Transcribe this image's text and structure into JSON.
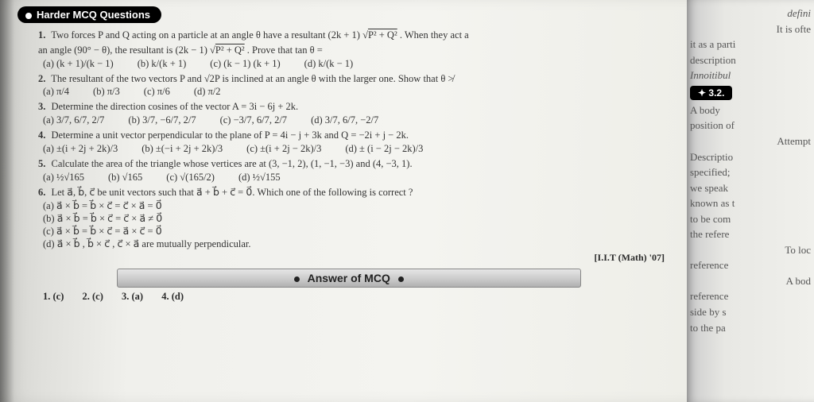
{
  "header": {
    "title": "Harder MCQ Questions"
  },
  "questions": [
    {
      "num": "1.",
      "text_a": "Two forces P and Q acting on a particle at an angle θ have a resultant (2k + 1)",
      "root_a": "P² + Q²",
      "text_b": " . When they act a",
      "text_c": "an angle (90° − θ), the resultant is (2k − 1)",
      "root_c": "P² + Q²",
      "text_d": " . Prove that tan θ =",
      "opts": [
        "(a) (k + 1)/(k − 1)",
        "(b) k/(k + 1)",
        "(c) (k − 1) (k + 1)",
        "(d) k/(k − 1)"
      ]
    },
    {
      "num": "2.",
      "text_a": "The resultant of the two vectors P and √2P is inclined at an angle θ with the larger one. Show that θ ≯",
      "opts": [
        "(a) π/4",
        "(b) π/3",
        "(c) π/6",
        "(d) π/2"
      ]
    },
    {
      "num": "3.",
      "text_a": "Determine the direction cosines of the vector A = 3i − 6j + 2k.",
      "opts": [
        "(a) 3/7, 6/7, 2/7",
        "(b) 3/7, −6/7, 2/7",
        "(c) −3/7, 6/7, 2/7",
        "(d) 3/7, 6/7, −2/7"
      ]
    },
    {
      "num": "4.",
      "text_a": "Determine a unit vector perpendicular to the plane of P = 4i − j + 3k and Q = −2i + j − 2k.",
      "opts": [
        "(a) ±(i + 2j + 2k)/3",
        "(b) ±(−i + 2j + 2k)/3",
        "(c) ±(i + 2j − 2k)/3",
        "(d) ± (i − 2j − 2k)/3"
      ]
    },
    {
      "num": "5.",
      "text_a": "Calculate the area of the triangle whose vertices are at (3, −1, 2), (1, −1, −3) and (4, −3, 1).",
      "opts": [
        "(a) ½√165",
        "(b) √165",
        "(c) √(165/2)",
        "(d) ½√155"
      ]
    },
    {
      "num": "6.",
      "text_a": "Let a⃗, b⃗, c⃗ be unit vectors such that a⃗ + b⃗ + c⃗ = 0⃗. Which one of the following is correct ?",
      "opts": [
        "(a) a⃗ × b⃗ = b⃗ × c⃗ = c⃗ × a⃗ = 0⃗",
        "(b) a⃗ × b⃗ = b⃗ × c⃗ = c⃗ × a⃗ ≠ 0⃗",
        "(c) a⃗ × b⃗ = b⃗ × c⃗ = a⃗ × c⃗ = 0⃗",
        "(d) a⃗ × b⃗ , b⃗ × c⃗ , c⃗ × a⃗ are mutually perpendicular."
      ]
    }
  ],
  "reference": "[I.I.T (Math) '07]",
  "answerbar": "Answer of MCQ",
  "answers": [
    "1. (c)",
    "2. (c)",
    "3. (a)",
    "4. (d)"
  ],
  "right": {
    "l1": "defini",
    "l2": "It is ofte",
    "l3": "it as a parti",
    "l4": "description",
    "l5": "Innoitibul",
    "pill": "3.2.",
    "l6": "A body",
    "l7": "position of",
    "l8": "Attempt",
    "l9": "Descriptio",
    "l10": "specified;",
    "l11": "we speak",
    "l12": "known as t",
    "l13": "to be com",
    "l14": "the refere",
    "l15": "To loc",
    "l16": "reference",
    "l17": "A bod",
    "l18": "reference",
    "l19": "side by s",
    "l20": "to the pa"
  }
}
